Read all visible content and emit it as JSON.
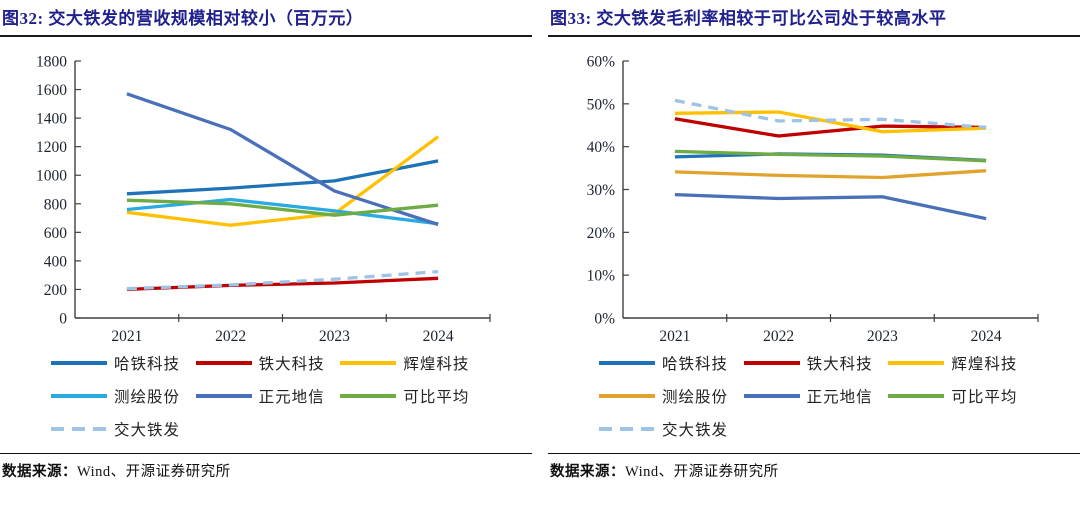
{
  "panels": [
    {
      "title": "图32:  交大铁发的营收规模相对较小（百万元）",
      "source": {
        "label": "数据来源：",
        "text": "Wind、开源证券研究所"
      }
    },
    {
      "title": "图33:  交大铁发毛利率相较于可比公司处于较高水平",
      "source": {
        "label": "数据来源：",
        "text": "Wind、开源证券研究所"
      }
    }
  ],
  "colors": {
    "title_navy": "#21208D",
    "axis": "#404040",
    "rule": "#1a1a1a"
  },
  "chart_data": [
    {
      "type": "line",
      "title": "交大铁发的营收规模相对较小（百万元）",
      "x_categories": [
        "2021",
        "2022",
        "2023",
        "2024"
      ],
      "ylim": [
        0,
        1800
      ],
      "ytick_step": 200,
      "ytick_suffix": "",
      "grid": false,
      "legend_position": "bottom",
      "series": [
        {
          "name": "哈铁科技",
          "color": "#1E73B8",
          "style": "solid",
          "values": [
            870,
            910,
            960,
            1100
          ]
        },
        {
          "name": "铁大科技",
          "color": "#C00000",
          "style": "solid",
          "values": [
            200,
            228,
            245,
            278
          ]
        },
        {
          "name": "辉煌科技",
          "color": "#FFC000",
          "style": "solid",
          "values": [
            740,
            650,
            730,
            1270
          ]
        },
        {
          "name": "测绘股份",
          "color": "#29ABE2",
          "style": "solid",
          "values": [
            760,
            830,
            750,
            660
          ]
        },
        {
          "name": "正元地信",
          "color": "#4A70B9",
          "style": "solid",
          "values": [
            1570,
            1320,
            890,
            655
          ]
        },
        {
          "name": "可比平均",
          "color": "#6FAB45",
          "style": "solid",
          "values": [
            825,
            800,
            720,
            790
          ]
        },
        {
          "name": "交大铁发",
          "color": "#9DC3E6",
          "style": "dashed",
          "values": [
            205,
            232,
            272,
            325
          ]
        }
      ]
    },
    {
      "type": "line",
      "title": "交大铁发毛利率相较于可比公司处于较高水平",
      "x_categories": [
        "2021",
        "2022",
        "2023",
        "2024"
      ],
      "ylim": [
        0,
        60
      ],
      "ytick_step": 10,
      "ytick_suffix": "%",
      "grid": false,
      "legend_position": "bottom",
      "series": [
        {
          "name": "哈铁科技",
          "color": "#1E73B8",
          "style": "solid",
          "values": [
            37.6,
            38.3,
            38.0,
            36.8
          ]
        },
        {
          "name": "铁大科技",
          "color": "#C00000",
          "style": "solid",
          "values": [
            46.5,
            42.5,
            44.8,
            44.5
          ]
        },
        {
          "name": "辉煌科技",
          "color": "#FFC000",
          "style": "solid",
          "values": [
            47.8,
            48.1,
            43.5,
            44.3
          ]
        },
        {
          "name": "测绘股份",
          "color": "#E0A32E",
          "style": "solid",
          "values": [
            34.1,
            33.3,
            32.8,
            34.4
          ]
        },
        {
          "name": "正元地信",
          "color": "#4A70B9",
          "style": "solid",
          "values": [
            28.8,
            27.9,
            28.3,
            23.2
          ]
        },
        {
          "name": "可比平均",
          "color": "#6FAB45",
          "style": "solid",
          "values": [
            38.9,
            38.2,
            37.8,
            36.7
          ]
        },
        {
          "name": "交大铁发",
          "color": "#9DC3E6",
          "style": "dashed",
          "values": [
            50.8,
            46.0,
            46.4,
            44.5
          ]
        }
      ]
    }
  ]
}
